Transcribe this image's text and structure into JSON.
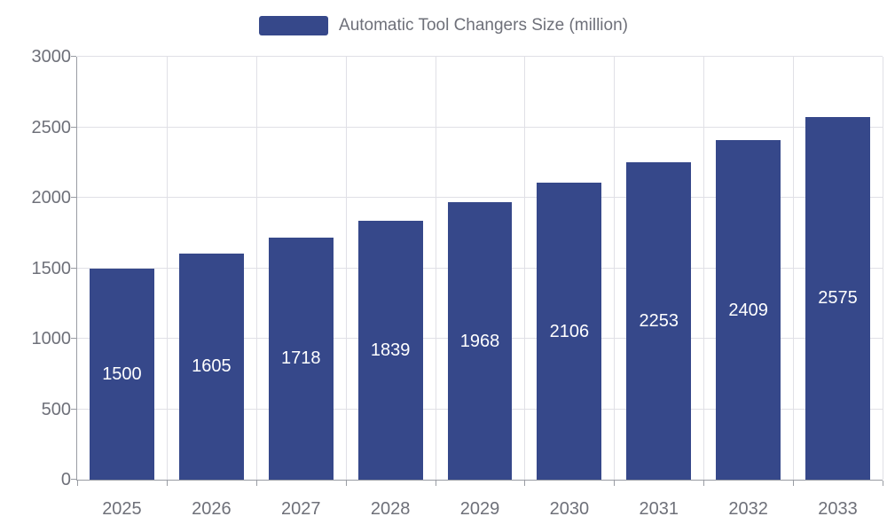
{
  "chart_data": {
    "type": "bar",
    "title": "Automatic Tool Changers Size (million)",
    "categories": [
      "2025",
      "2026",
      "2027",
      "2028",
      "2029",
      "2030",
      "2031",
      "2032",
      "2033"
    ],
    "series": [
      {
        "name": "Automatic Tool Changers Size (million)",
        "values": [
          1500,
          1605,
          1718,
          1839,
          1968,
          2106,
          2253,
          2409,
          2575
        ]
      }
    ],
    "xlabel": "",
    "ylabel": "",
    "ylim": [
      0,
      3000
    ],
    "yticks": [
      0,
      500,
      1000,
      1500,
      2000,
      2500,
      3000
    ],
    "grid": true,
    "legend_position": "top",
    "data_labels": "inside-center"
  },
  "style": {
    "bar_color": "#36488A",
    "bar_label_color": "#ffffff",
    "axis_color": "#999CA3",
    "grid_color": "#E0E0E6",
    "text_color": "#6E7079"
  }
}
